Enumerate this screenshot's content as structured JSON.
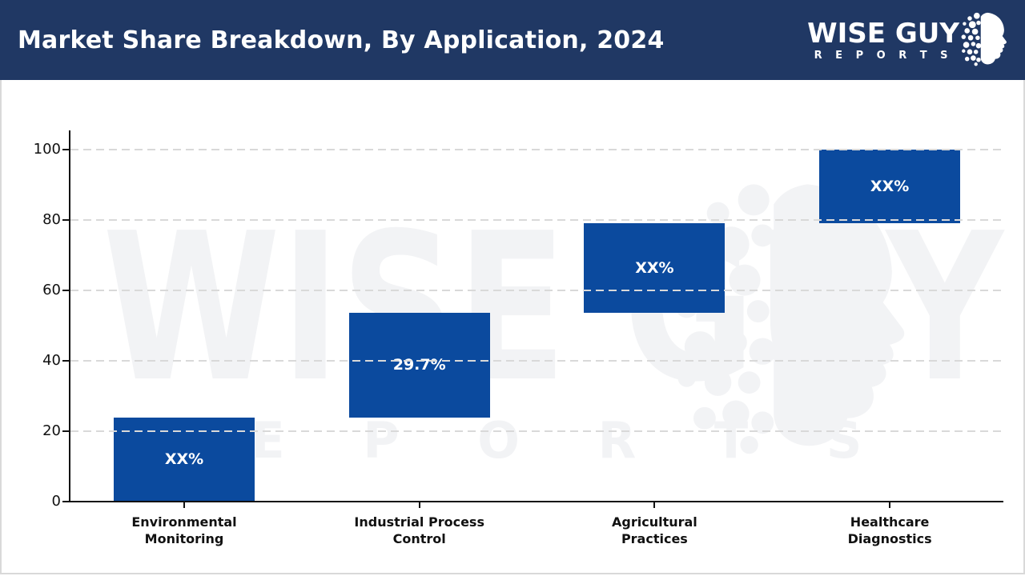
{
  "header": {
    "title": "Market Share Breakdown, By Application, 2024",
    "logo": {
      "name": "WISE GUY",
      "subname": "R E P O R T S"
    }
  },
  "watermark": {
    "line1": "WISE GUY",
    "line2": "R E P O R T S"
  },
  "colors": {
    "header_bg": "#203864",
    "bar": "#0b4a9e",
    "grid": "#d9d9d9",
    "axis": "#111111",
    "watermark": "#f2f3f5",
    "page_border": "#d9d9d9",
    "bar_label": "#ffffff"
  },
  "chart_data": {
    "type": "bar",
    "subtype": "floating-waterfall",
    "title": "Market Share Breakdown, By Application, 2024",
    "categories": [
      "Environmental Monitoring",
      "Industrial Process Control",
      "Agricultural Practices",
      "Healthcare Diagnostics"
    ],
    "category_lines": [
      [
        "Environmental",
        "Monitoring"
      ],
      [
        "Industrial Process",
        "Control"
      ],
      [
        "Agricultural",
        "Practices"
      ],
      [
        "Healthcare",
        "Diagnostics"
      ]
    ],
    "segments": [
      {
        "category": "Environmental Monitoring",
        "start": 0,
        "end": 23.9,
        "label": "XX%"
      },
      {
        "category": "Industrial Process Control",
        "start": 23.9,
        "end": 53.6,
        "label": "29.7%"
      },
      {
        "category": "Agricultural Practices",
        "start": 53.6,
        "end": 79.2,
        "label": "XX%"
      },
      {
        "category": "Healthcare Diagnostics",
        "start": 79.2,
        "end": 100,
        "label": "XX%"
      }
    ],
    "xlabel": "",
    "ylabel": "",
    "ylim": [
      0,
      100
    ],
    "yticks": [
      0,
      20,
      40,
      60,
      80,
      100
    ],
    "grid": "horizontal dashed",
    "legend": "none",
    "bar_label_note": "values shown inside bars; only second bar has numeric value 29.7%"
  }
}
